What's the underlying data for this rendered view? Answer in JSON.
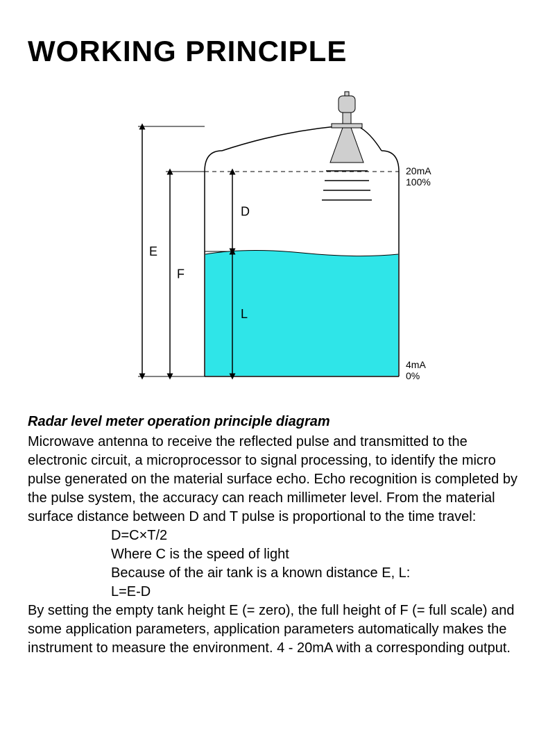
{
  "title": "WORKING PRINCIPLE",
  "subtitle": "Radar level meter operation principle diagram",
  "paragraph1": "Microwave antenna to receive the reflected pulse and transmitted to the electronic circuit, a microprocessor to signal processing, to identify the micro pulse generated on the material surface echo. Echo recognition is completed by the pulse system, the accuracy can reach millimeter level. From the material surface distance between D and T pulse is proportional to the time travel:",
  "formula1": "D=C×T/2",
  "formula2": "Where C is the speed of light",
  "formula3": "Because of the air tank is a known distance E, L:",
  "formula4": "L=E-D",
  "paragraph2": "By setting the empty tank height E (= zero), the full height of F (= full scale) and some application parameters, application parameters automatically makes the instrument to measure the environment. 4 - 20mA with a corresponding output.",
  "diagram": {
    "labels": {
      "E": "E",
      "F": "F",
      "D": "D",
      "L": "L"
    },
    "topRight1": "20mA",
    "topRight2": "100%",
    "bottomRight1": "4mA",
    "bottomRight2": "0%",
    "colors": {
      "liquid": "#2fe5e8",
      "stroke": "#000000",
      "sensorGray": "#cfcfcf",
      "bg": "#ffffff"
    },
    "geometry": {
      "svgW": 560,
      "svgH": 450,
      "tankLeft": 180,
      "tankRight": 460,
      "tankBottom": 420,
      "tankTopFlat": 125,
      "tankShoulderY": 95,
      "roofTopY": 60,
      "dashedY": 125,
      "liquidTop": 240,
      "dimXE": 90,
      "dimXF": 130,
      "dimXDL": 220,
      "topBaselineY": 60,
      "sensorCx": 385
    },
    "fontSize": 18,
    "smallFontSize": 14,
    "strokeWidth": 1.5
  }
}
